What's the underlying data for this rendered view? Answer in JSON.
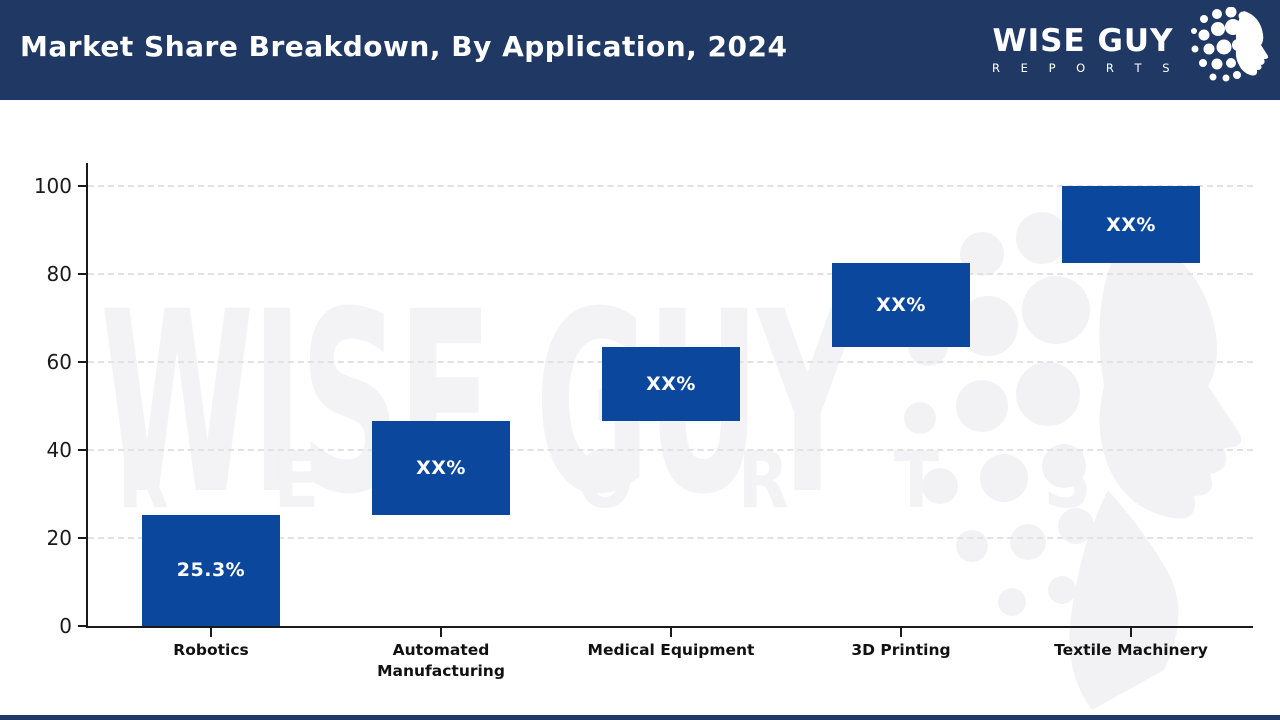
{
  "header": {
    "title": "Market Share Breakdown, By Application, 2024",
    "logo": {
      "wordmark": "WISE GUY",
      "subtext": "R E P O R T S"
    }
  },
  "watermark": {
    "wordmark": "WISE GUY",
    "subtext": "R E P O R T S"
  },
  "colors": {
    "header_bg": "#203864",
    "bar": "#0b479d",
    "bar_label": "#ffffff",
    "gridline": "#e2e2e2",
    "axis": "#1a1a1a",
    "watermark": "#f3f3f6"
  },
  "chart_data": {
    "type": "bar",
    "subtype": "waterfall",
    "title": "Market Share Breakdown, By Application, 2024",
    "xlabel": "",
    "ylabel": "",
    "ylim": [
      0,
      105
    ],
    "yticks": [
      0,
      20,
      40,
      60,
      80,
      100
    ],
    "grid": "dashed-horizontal",
    "legend": "none",
    "categories": [
      "Robotics",
      "Automated Manufacturing",
      "Medical Equipment",
      "3D Printing",
      "Textile Machinery"
    ],
    "segments": [
      {
        "category": "Robotics",
        "start": 0,
        "end": 25.3,
        "label": "25.3%"
      },
      {
        "category": "Automated Manufacturing",
        "start": 25.3,
        "end": 46.5,
        "label": "XX%"
      },
      {
        "category": "Medical Equipment",
        "start": 46.5,
        "end": 63.5,
        "label": "XX%"
      },
      {
        "category": "3D Printing",
        "start": 63.5,
        "end": 82.5,
        "label": "XX%"
      },
      {
        "category": "Textile Machinery",
        "start": 82.5,
        "end": 100,
        "label": "XX%"
      }
    ]
  }
}
